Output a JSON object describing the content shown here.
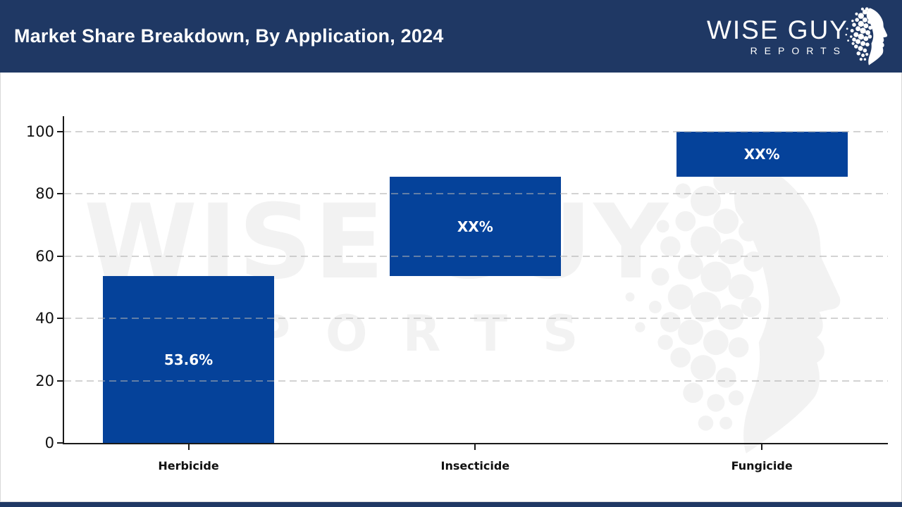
{
  "header": {
    "title": "Market Share Breakdown, By Application, 2024",
    "logo": {
      "name": "WISE GUY",
      "tagline": "REPORTS"
    }
  },
  "watermark": {
    "name": "WISE GUY",
    "tagline": "REPORTS"
  },
  "chart_data": {
    "type": "bar",
    "variant": "waterfall (floating stacked market-share bars)",
    "title": "Market Share Breakdown, By Application, 2024",
    "categories": [
      "Herbicide",
      "Insecticide",
      "Fungicide"
    ],
    "segments": [
      {
        "category": "Herbicide",
        "start": 0,
        "end": 53.6,
        "label": "53.6%"
      },
      {
        "category": "Insecticide",
        "start": 53.6,
        "end": 85.5,
        "label": "XX%"
      },
      {
        "category": "Fungicide",
        "start": 85.5,
        "end": 100,
        "label": "XX%"
      }
    ],
    "xlabel": "",
    "ylabel": "",
    "yticks": [
      0,
      20,
      40,
      60,
      80,
      100
    ],
    "ylim": [
      0,
      105
    ],
    "grid": {
      "horizontal": true,
      "style": "dashed",
      "drawn_over_bars": true
    },
    "legend": "none",
    "bar_color": "#05429a",
    "bar_label_color": "#ffffff",
    "axis_color": "#1a1a1a",
    "header_color": "#1f3864",
    "watermark_color": "#f2f2f2"
  }
}
